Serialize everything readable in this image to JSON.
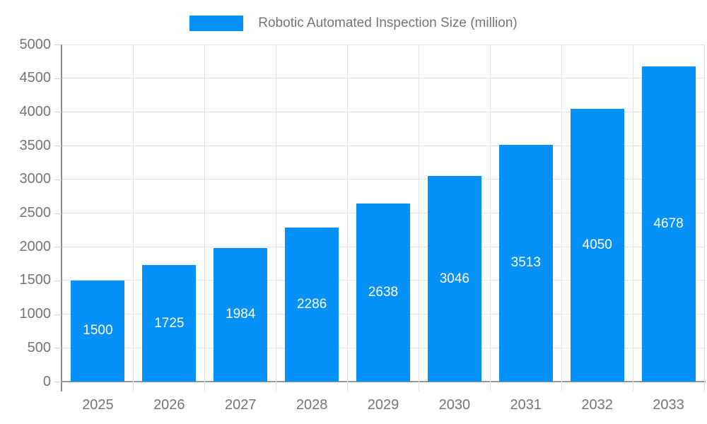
{
  "chart_data": {
    "type": "bar",
    "title": "Robotic Automated Inspection Size (million)",
    "categories": [
      "2025",
      "2026",
      "2027",
      "2028",
      "2029",
      "2030",
      "2031",
      "2032",
      "2033"
    ],
    "values": [
      1500,
      1725,
      1984,
      2286,
      2638,
      3046,
      3513,
      4050,
      4678
    ],
    "xlabel": "",
    "ylabel": "",
    "ylim": [
      0,
      5000
    ],
    "yticks": [
      0,
      500,
      1000,
      1500,
      2000,
      2500,
      3000,
      3500,
      4000,
      4500,
      5000
    ],
    "grid": true,
    "legend_position": "top-center",
    "bar_color": "#0691f8",
    "bar_label_color": "#ffffff",
    "axis_text_color": "#757575",
    "grid_color": "#e3e3e3",
    "axis_line_color": "#8c8c8c"
  },
  "legend": {
    "label": "Robotic Automated Inspection Size (million)",
    "swatch_color": "#0691f8"
  }
}
